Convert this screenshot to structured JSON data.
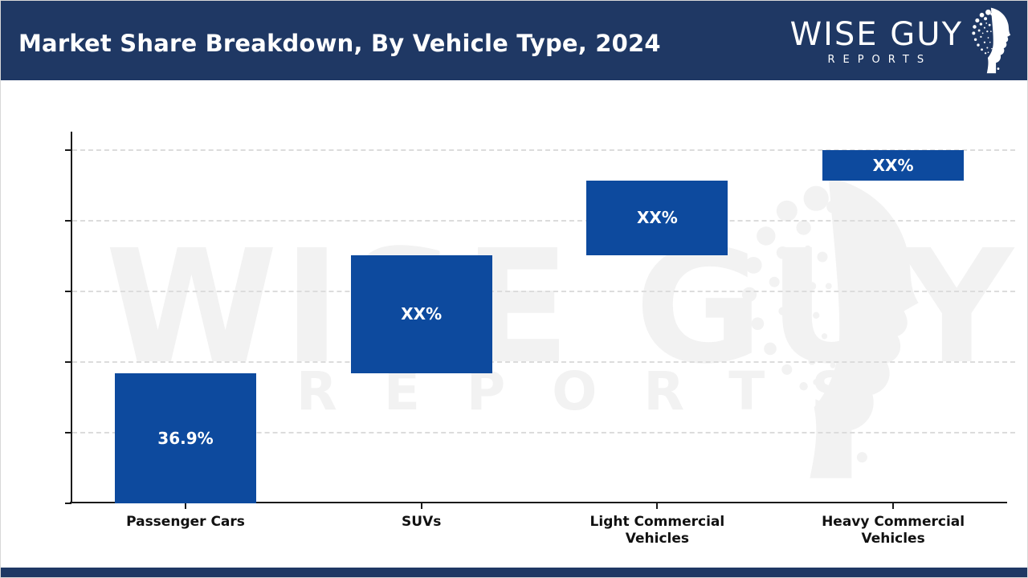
{
  "header": {
    "title": "Market Share Breakdown, By Vehicle Type, 2024",
    "bg_color": "#1f3864",
    "logo": {
      "line1": "WISE GUY",
      "line2": "REPORTS"
    }
  },
  "watermark": {
    "line1": "WISE GUY",
    "line2": "REPORTS"
  },
  "footer": {
    "bg_color": "#1f3864"
  },
  "chart_data": {
    "type": "bar",
    "variant": "waterfall",
    "title": "Market Share Breakdown, By Vehicle Type, 2024",
    "categories": [
      "Passenger Cars",
      "SUVs",
      "Light Commercial Vehicles",
      "Heavy Commercial Vehicles"
    ],
    "segments": [
      {
        "category": "Passenger Cars",
        "start": 0,
        "end": 36.9,
        "value": 36.9,
        "label": "36.9%"
      },
      {
        "category": "SUVs",
        "start": 36.9,
        "end": 70.2,
        "value": 33.3,
        "label": "XX%"
      },
      {
        "category": "Light Commercial Vehicles",
        "start": 70.2,
        "end": 91.4,
        "value": 21.2,
        "label": "XX%"
      },
      {
        "category": "Heavy Commercial Vehicles",
        "start": 91.4,
        "end": 100,
        "value": 8.6,
        "label": "XX%"
      }
    ],
    "yticks": [
      0,
      20,
      40,
      60,
      80,
      100
    ],
    "ylim": [
      0,
      105
    ],
    "xlabel": "",
    "ylabel": "",
    "grid": "horizontal-dashed",
    "legend": "none",
    "bar_color": "#0d4a9e",
    "bar_label_color": "#ffffff"
  }
}
